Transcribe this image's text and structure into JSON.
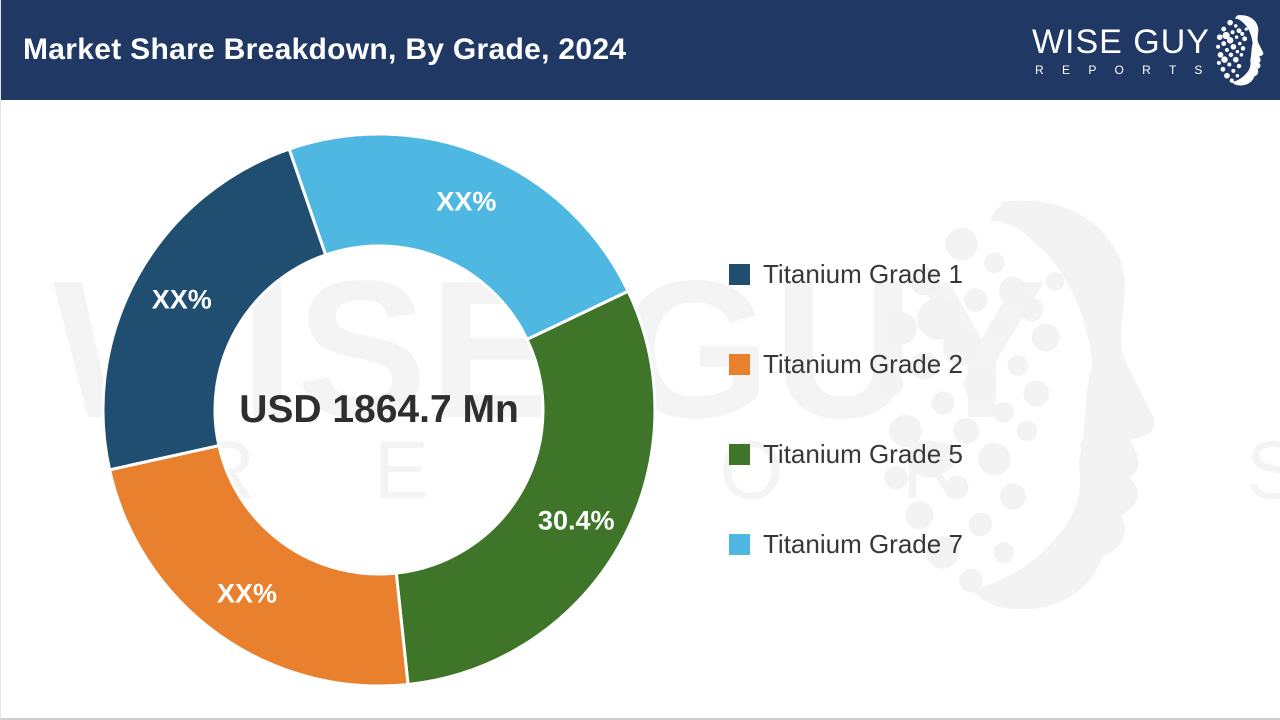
{
  "header": {
    "title": "Market Share Breakdown, By Grade, 2024",
    "logo": {
      "name": "WISE GUY",
      "sub": "R E P O R T S"
    }
  },
  "watermark": {
    "line1": "WISE GUY",
    "line2": "R E P O R T S"
  },
  "chart_data": {
    "type": "pie",
    "subtype": "donut",
    "title": "Market Share Breakdown, By Grade, 2024",
    "center_label": "USD 1864.7 Mn",
    "start_angle_deg": -19,
    "legend_position": "right",
    "segments": [
      {
        "name": "Titanium Grade 7",
        "label": "XX%",
        "percent": 23.2,
        "color": "#4FB8E2"
      },
      {
        "name": "Titanium Grade 5",
        "label": "30.4%",
        "percent": 30.4,
        "color": "#3E7528"
      },
      {
        "name": "Titanium Grade 2",
        "label": "XX%",
        "percent": 23.2,
        "color": "#E8802E"
      },
      {
        "name": "Titanium Grade 1",
        "label": "XX%",
        "percent": 23.2,
        "color": "#1F4E70"
      }
    ],
    "legend": [
      {
        "label": "Titanium Grade 1",
        "color": "#1F4E70"
      },
      {
        "label": "Titanium Grade 2",
        "color": "#E8802E"
      },
      {
        "label": "Titanium Grade 5",
        "color": "#3E7528"
      },
      {
        "label": "Titanium Grade 7",
        "color": "#4FB8E2"
      }
    ]
  }
}
